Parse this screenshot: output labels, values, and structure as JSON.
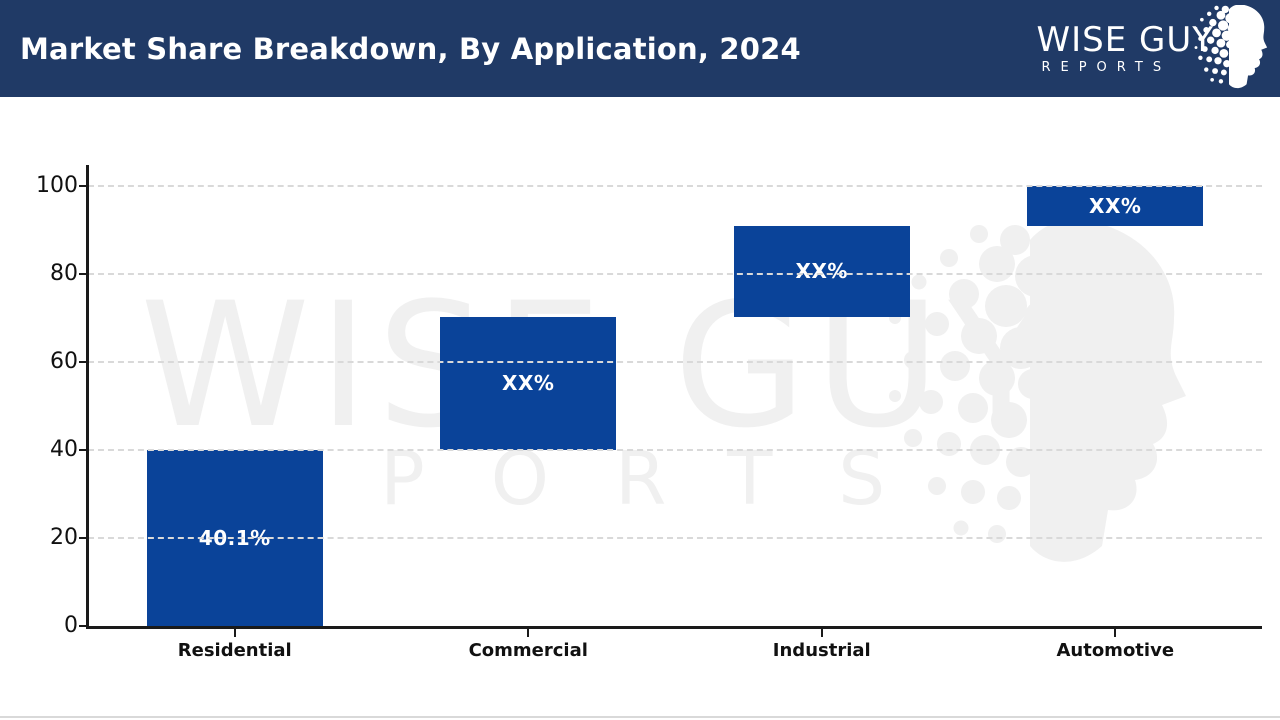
{
  "header": {
    "title": "Market Share Breakdown, By Application, 2024",
    "logo": {
      "primary": "WISE GUY",
      "secondary": "REPORTS",
      "icon": "wiseguy-dotted-face"
    }
  },
  "watermark": {
    "line1": "WISE GUY",
    "line2": "REPORTS",
    "icon": "wiseguy-dotted-face"
  },
  "colors": {
    "header_bg": "#203a66",
    "bar_fill": "#0a4399",
    "bar_label": "#ffffff",
    "gridline": "#d9d9d9",
    "axis": "#1a1a1a",
    "tick_label": "#111111",
    "watermark": "#f0f0f0",
    "footer_line": "#d9d9d9"
  },
  "chart_data": {
    "type": "bar",
    "subtype": "waterfall",
    "title": "Market Share Breakdown, By Application, 2024",
    "categories": [
      "Residential",
      "Commercial",
      "Industrial",
      "Automotive"
    ],
    "segments": [
      {
        "category": "Residential",
        "start": 0,
        "end": 40.1,
        "value": 40.1,
        "label": "40.1%"
      },
      {
        "category": "Commercial",
        "start": 40.1,
        "end": 70.2,
        "value": 30.1,
        "label": "XX%"
      },
      {
        "category": "Industrial",
        "start": 70.2,
        "end": 91.0,
        "value": 20.8,
        "label": "XX%"
      },
      {
        "category": "Automotive",
        "start": 91.0,
        "end": 100.0,
        "value": 9.0,
        "label": "XX%"
      }
    ],
    "xlabel": "",
    "ylabel": "",
    "ylim": [
      0,
      100
    ],
    "yticks": [
      0,
      20,
      40,
      60,
      80,
      100
    ],
    "grid": "horizontal dashed gridlines drawn over bars",
    "legend": "none"
  }
}
